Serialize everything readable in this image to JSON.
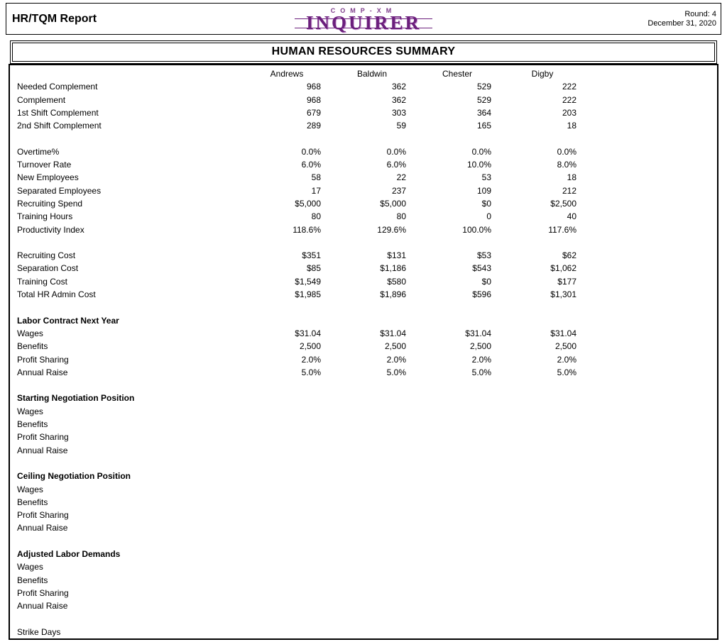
{
  "header": {
    "title": "HR/TQM Report",
    "logo_small": "COMP-XM",
    "logo_main": "INQUIRER",
    "round_label": "Round: 4",
    "date": "December 31, 2020"
  },
  "colors": {
    "logo_purple": "#6b1f7c",
    "border": "#000000"
  },
  "summary_title": "HUMAN RESOURCES SUMMARY",
  "table": {
    "companies": [
      "Andrews",
      "Baldwin",
      "Chester",
      "Digby"
    ],
    "rows": [
      {
        "type": "data",
        "label": "Needed Complement",
        "values": [
          "968",
          "362",
          "529",
          "222"
        ]
      },
      {
        "type": "data",
        "label": "Complement",
        "values": [
          "968",
          "362",
          "529",
          "222"
        ]
      },
      {
        "type": "data",
        "label": "1st Shift Complement",
        "values": [
          "679",
          "303",
          "364",
          "203"
        ]
      },
      {
        "type": "data",
        "label": "2nd Shift Complement",
        "values": [
          "289",
          "59",
          "165",
          "18"
        ]
      },
      {
        "type": "blank"
      },
      {
        "type": "data",
        "label": "Overtime%",
        "values": [
          "0.0%",
          "0.0%",
          "0.0%",
          "0.0%"
        ]
      },
      {
        "type": "data",
        "label": "Turnover Rate",
        "values": [
          "6.0%",
          "6.0%",
          "10.0%",
          "8.0%"
        ]
      },
      {
        "type": "data",
        "label": "New Employees",
        "values": [
          "58",
          "22",
          "53",
          "18"
        ]
      },
      {
        "type": "data",
        "label": "Separated Employees",
        "values": [
          "17",
          "237",
          "109",
          "212"
        ]
      },
      {
        "type": "data",
        "label": "Recruiting Spend",
        "values": [
          "$5,000",
          "$5,000",
          "$0",
          "$2,500"
        ]
      },
      {
        "type": "data",
        "label": "Training Hours",
        "values": [
          "80",
          "80",
          "0",
          "40"
        ]
      },
      {
        "type": "data",
        "label": "Productivity Index",
        "values": [
          "118.6%",
          "129.6%",
          "100.0%",
          "117.6%"
        ]
      },
      {
        "type": "blank"
      },
      {
        "type": "data",
        "label": "Recruiting Cost",
        "values": [
          "$351",
          "$131",
          "$53",
          "$62"
        ]
      },
      {
        "type": "data",
        "label": "Separation Cost",
        "values": [
          "$85",
          "$1,186",
          "$543",
          "$1,062"
        ]
      },
      {
        "type": "data",
        "label": "Training Cost",
        "values": [
          "$1,549",
          "$580",
          "$0",
          "$177"
        ]
      },
      {
        "type": "data",
        "label": "Total HR Admin Cost",
        "values": [
          "$1,985",
          "$1,896",
          "$596",
          "$1,301"
        ]
      },
      {
        "type": "blank"
      },
      {
        "type": "section",
        "label": "Labor Contract Next Year"
      },
      {
        "type": "data",
        "label": "Wages",
        "values": [
          "$31.04",
          "$31.04",
          "$31.04",
          "$31.04"
        ]
      },
      {
        "type": "data",
        "label": "Benefits",
        "values": [
          "2,500",
          "2,500",
          "2,500",
          "2,500"
        ]
      },
      {
        "type": "data",
        "label": "Profit Sharing",
        "values": [
          "2.0%",
          "2.0%",
          "2.0%",
          "2.0%"
        ]
      },
      {
        "type": "data",
        "label": "Annual Raise",
        "values": [
          "5.0%",
          "5.0%",
          "5.0%",
          "5.0%"
        ]
      },
      {
        "type": "blank"
      },
      {
        "type": "section",
        "label": "Starting Negotiation Position"
      },
      {
        "type": "data",
        "label": "Wages",
        "values": [
          "",
          "",
          "",
          ""
        ]
      },
      {
        "type": "data",
        "label": "Benefits",
        "values": [
          "",
          "",
          "",
          ""
        ]
      },
      {
        "type": "data",
        "label": "Profit Sharing",
        "values": [
          "",
          "",
          "",
          ""
        ]
      },
      {
        "type": "data",
        "label": "Annual Raise",
        "values": [
          "",
          "",
          "",
          ""
        ]
      },
      {
        "type": "blank"
      },
      {
        "type": "section",
        "label": "Ceiling Negotiation Position"
      },
      {
        "type": "data",
        "label": "Wages",
        "values": [
          "",
          "",
          "",
          ""
        ]
      },
      {
        "type": "data",
        "label": "Benefits",
        "values": [
          "",
          "",
          "",
          ""
        ]
      },
      {
        "type": "data",
        "label": "Profit Sharing",
        "values": [
          "",
          "",
          "",
          ""
        ]
      },
      {
        "type": "data",
        "label": "Annual Raise",
        "values": [
          "",
          "",
          "",
          ""
        ]
      },
      {
        "type": "blank"
      },
      {
        "type": "section",
        "label": "Adjusted Labor Demands"
      },
      {
        "type": "data",
        "label": "Wages",
        "values": [
          "",
          "",
          "",
          ""
        ]
      },
      {
        "type": "data",
        "label": "Benefits",
        "values": [
          "",
          "",
          "",
          ""
        ]
      },
      {
        "type": "data",
        "label": "Profit Sharing",
        "values": [
          "",
          "",
          "",
          ""
        ]
      },
      {
        "type": "data",
        "label": "Annual Raise",
        "values": [
          "",
          "",
          "",
          ""
        ]
      },
      {
        "type": "blank"
      },
      {
        "type": "data",
        "label": "Strike Days",
        "values": [
          "",
          "",
          "",
          ""
        ]
      }
    ]
  }
}
